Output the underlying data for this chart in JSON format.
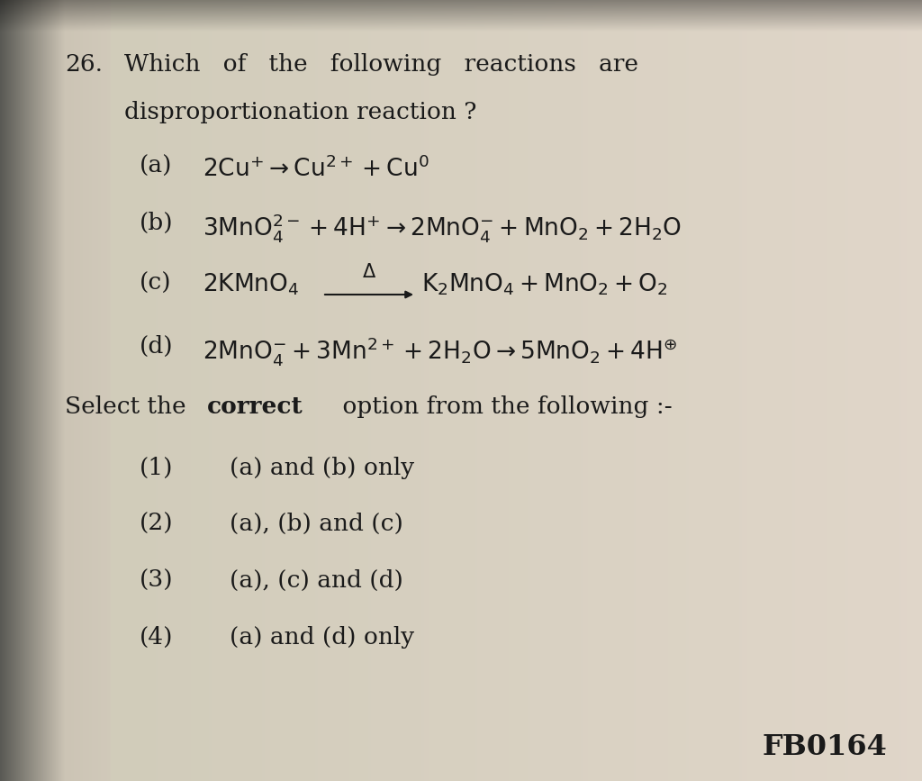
{
  "bg_color_left": "#8a8a8a",
  "bg_color_mid": "#c8c4b8",
  "bg_color_right": "#d0cdc2",
  "text_color": "#1a1a1a",
  "question_label": "FB0164",
  "figsize": [
    10.24,
    8.67
  ],
  "dpi": 100,
  "title_line1": "Which   of   the   following   reactions   are",
  "title_line2": "disproportionation reaction ?",
  "reaction_a": "2Cu^{+} \\rightarrow Cu^{2+} + Cu^{0}",
  "reaction_b": "3MnO_{4}^{2-} + 4H^{+} \\rightarrow 2MnO_{4}^{-} + MnO_{2} + 2H_{2}O",
  "reaction_c_left": "2KMnO_{4}",
  "reaction_c_right": "K_{2}MnO_{4} + MnO_{2} + O_{2}",
  "reaction_d": "2MnO_{4}^{-} + 3Mn^{2+} + 2H_{2}O \\rightarrow 5MnO_{2} + 4H^{\\oplus}",
  "options": [
    {
      "num": "(1)",
      "text": "(a) and (b) only"
    },
    {
      "num": "(2)",
      "text": "(a), (b) and (c)"
    },
    {
      "num": "(3)",
      "text": "(a), (c) and (d)"
    },
    {
      "num": "(4)",
      "text": "(a) and (d) only"
    }
  ]
}
